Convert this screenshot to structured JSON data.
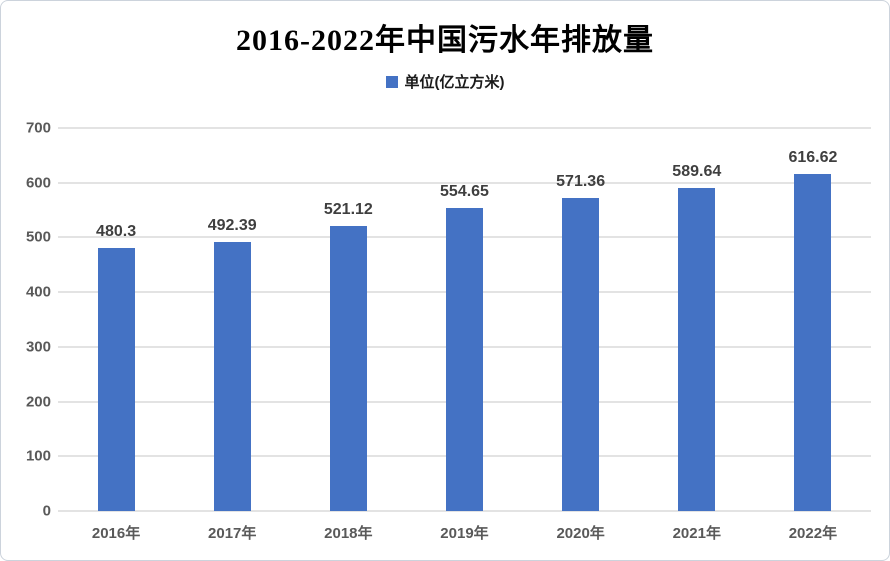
{
  "legend": {
    "label": "单位(亿立方米)",
    "marker_color": "#4472C4"
  },
  "chart_data": {
    "type": "bar",
    "title": "2016-2022年中国污水年排放量",
    "categories": [
      "2016年",
      "2017年",
      "2018年",
      "2019年",
      "2020年",
      "2021年",
      "2022年"
    ],
    "values": [
      480.3,
      492.39,
      521.12,
      554.65,
      571.36,
      589.64,
      616.62
    ],
    "data_labels": [
      "480.3",
      "492.39",
      "521.12",
      "554.65",
      "571.36",
      "589.64",
      "616.62"
    ],
    "series_name": "单位(亿立方米)",
    "xlabel": "",
    "ylabel": "",
    "ylim": [
      0,
      700
    ],
    "yticks": [
      0,
      100,
      200,
      300,
      400,
      500,
      600,
      700
    ],
    "grid": true,
    "legend_position": "top-center",
    "bar_color": "#4472C4",
    "gridline_color": "#e3e3e3",
    "axis_text_color": "#595959",
    "data_label_color": "#3f3f3f",
    "title_color": "#000000"
  }
}
